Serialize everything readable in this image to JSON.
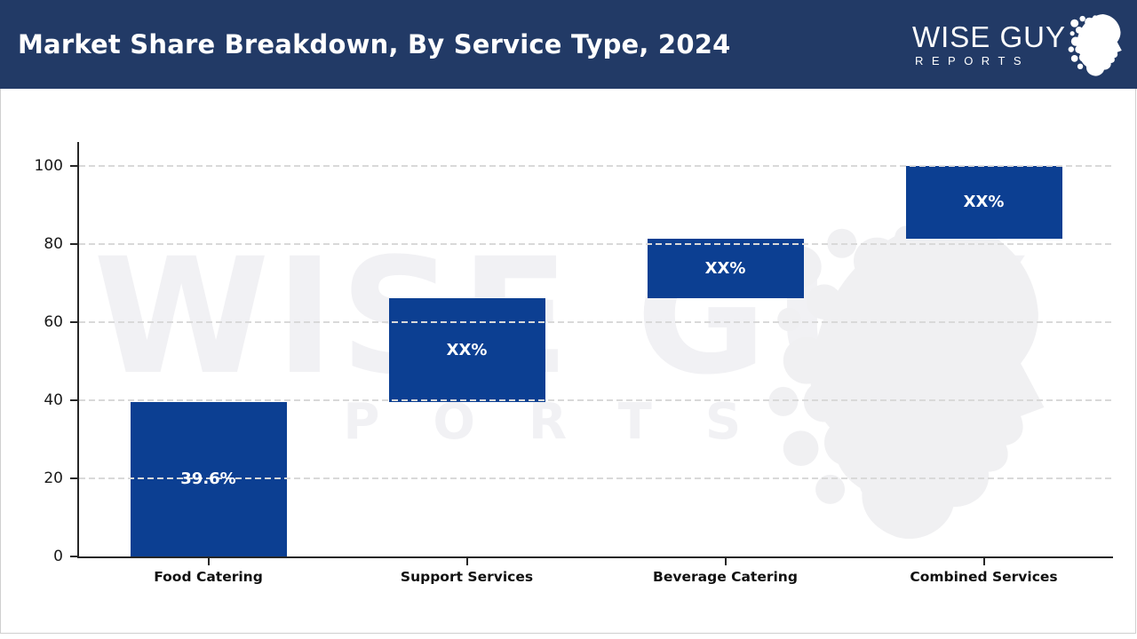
{
  "header": {
    "title": "Market Share Breakdown, By Service Type, 2024",
    "bg_color": "#223a66",
    "text_color": "#ffffff",
    "logo": {
      "line1": "WISE GUY",
      "line2": "REPORTS",
      "icon": "wise-guy-head-icon"
    }
  },
  "watermark": {
    "line1": "WISE GUY",
    "line2": "REPORTS",
    "color": "#f1f1f4",
    "icon": "wise-guy-head-icon"
  },
  "chart_data": {
    "type": "bar",
    "subtype": "waterfall",
    "title": "Market Share Breakdown, By Service Type, 2024",
    "categories": [
      "Food Catering",
      "Support Services",
      "Beverage Catering",
      "Combined Services"
    ],
    "segments": [
      {
        "category": "Food Catering",
        "start": 0,
        "end": 39.6,
        "label": "39.6%"
      },
      {
        "category": "Support Services",
        "start": 39.6,
        "end": 66.1,
        "label": "XX%"
      },
      {
        "category": "Beverage Catering",
        "start": 66.1,
        "end": 81.4,
        "label": "XX%"
      },
      {
        "category": "Combined Services",
        "start": 81.4,
        "end": 100,
        "label": "XX%"
      }
    ],
    "xlabel": "",
    "ylabel": "",
    "ylim": [
      0,
      100
    ],
    "yticks": [
      0,
      20,
      40,
      60,
      80,
      100
    ],
    "grid": "horizontal-dashed",
    "legend": "none",
    "bar_color": "#0c3f92",
    "bar_label_color": "#ffffff",
    "grid_color": "#d9d9d9",
    "axis_color": "#262626",
    "tick_label_color": "#1a1a1a"
  }
}
